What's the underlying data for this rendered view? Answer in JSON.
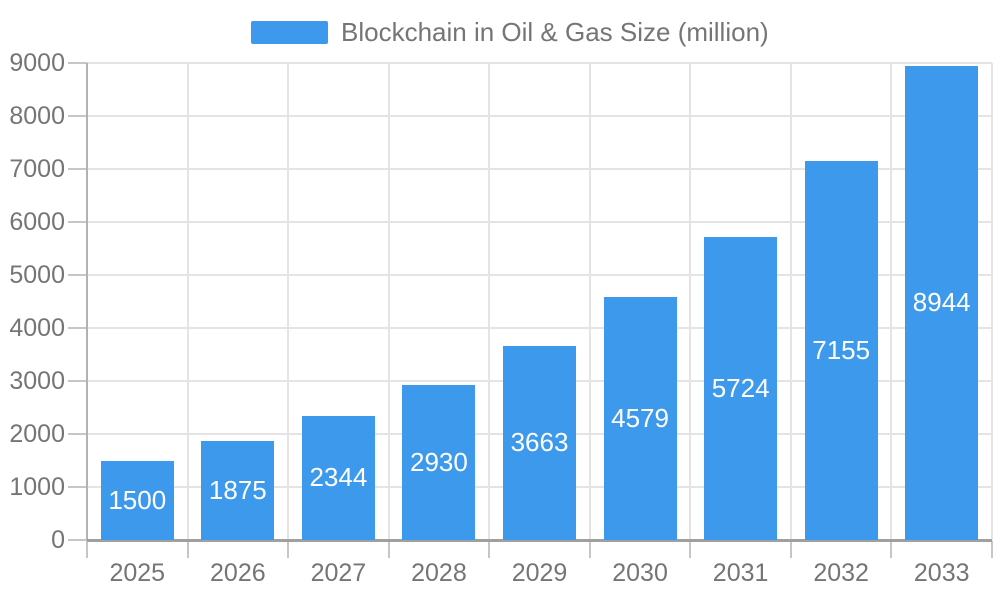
{
  "legend": {
    "label": "Blockchain in Oil & Gas Size (million)"
  },
  "colors": {
    "bar": "#3d99ec",
    "legend_swatch": "#3d99ec",
    "grid": "#e4e4e4",
    "tick": "#c6c6c6",
    "y_axis_line": "#b2b2b2",
    "x_axis_line": "#a0a0a0",
    "axis_label_text": "#757575",
    "bar_value_text": "#ffffff",
    "background": "#ffffff"
  },
  "chart_data": {
    "type": "bar",
    "title": "Blockchain in Oil & Gas Size (million)",
    "categories": [
      "2025",
      "2026",
      "2027",
      "2028",
      "2029",
      "2030",
      "2031",
      "2032",
      "2033"
    ],
    "values": [
      1500,
      1875,
      2344,
      2930,
      3663,
      4579,
      5724,
      7155,
      8944
    ],
    "series_name": "Blockchain in Oil & Gas Size (million)",
    "xlabel": "",
    "ylabel": "",
    "ylim": [
      0,
      9000
    ],
    "yticks": [
      0,
      1000,
      2000,
      3000,
      4000,
      5000,
      6000,
      7000,
      8000,
      9000
    ],
    "grid": true,
    "legend_position": "top",
    "value_labels": "inside-center"
  }
}
